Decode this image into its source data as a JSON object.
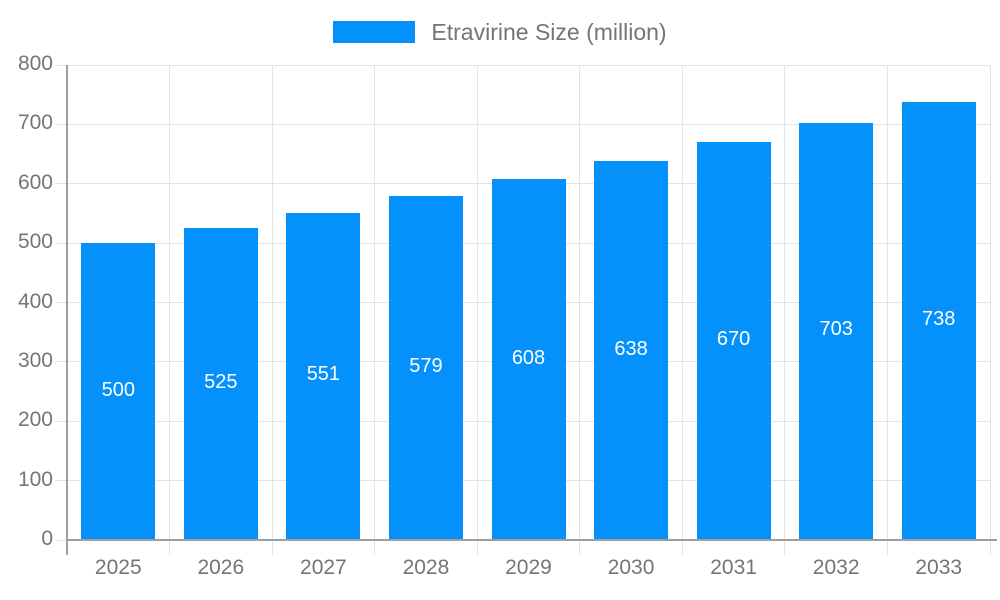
{
  "chart_data": {
    "type": "bar",
    "title": "",
    "legend": "Etravirine Size (million)",
    "legend_position": "top-center",
    "categories": [
      "2025",
      "2026",
      "2027",
      "2028",
      "2029",
      "2030",
      "2031",
      "2032",
      "2033"
    ],
    "values": [
      500,
      525,
      551,
      579,
      608,
      638,
      670,
      703,
      738
    ],
    "xlabel": "",
    "ylabel": "",
    "ylim": [
      0,
      800
    ],
    "ytick_step": 100,
    "ytick_labels": [
      "0",
      "100",
      "200",
      "300",
      "400",
      "500",
      "600",
      "700",
      "800"
    ],
    "grid": true,
    "bar_value_labels_shown": true,
    "colors": {
      "bar": "#0591fb",
      "bar_value_label": "#ffffff",
      "axis_text": "#757575",
      "grid_line": "#e4e4e4",
      "axis_line": "#9e9e9e",
      "background": "#ffffff"
    }
  }
}
